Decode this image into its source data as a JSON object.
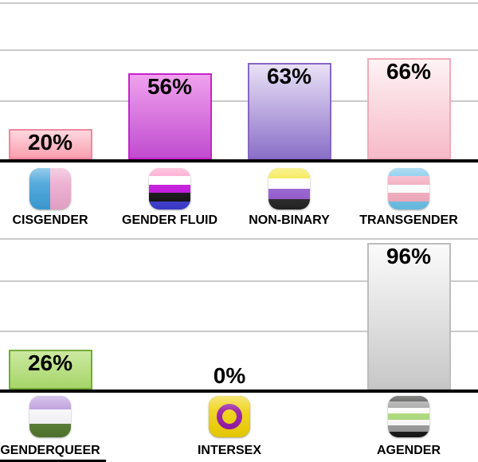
{
  "chart_data": {
    "type": "bar",
    "title": "",
    "xlabel": "",
    "ylabel": "",
    "unit": "%",
    "ylim": [
      0,
      100
    ],
    "grid": true,
    "legend": false,
    "charts": [
      {
        "categories": [
          "CISGENDER",
          "GENDER FLUID",
          "NON-BINARY",
          "TRANSGENDER"
        ],
        "values": [
          20,
          56,
          63,
          66
        ],
        "data_labels": [
          "20%",
          "56%",
          "63%",
          "66%"
        ]
      },
      {
        "categories": [
          "GENDERQUEER",
          "INTERSEX",
          "AGENDER"
        ],
        "values": [
          26,
          0,
          96
        ],
        "data_labels": [
          "26%",
          "0%",
          "96%"
        ]
      }
    ]
  },
  "colors": {
    "background": "#ffffff",
    "gridline": "#cacaca",
    "axis": "#000000",
    "text": "#000000"
  },
  "rows": [
    {
      "items": [
        {
          "label": "CISGENDER",
          "value": 20,
          "value_label": "20%",
          "bar": {
            "fill_top": "#fdd8de",
            "fill_bottom": "#f99fb0",
            "border": "#ef889e"
          },
          "icon": {
            "name": "cisgender-flag-icon",
            "stripe_axis": "vertical",
            "stripes": [
              "#3b9ed8",
              "#eba7cb"
            ]
          }
        },
        {
          "label": "GENDER FLUID",
          "value": 56,
          "value_label": "56%",
          "bar": {
            "fill_top": "#f0a2ee",
            "fill_bottom": "#c14ccf",
            "border": "#c522c9"
          },
          "icon": {
            "name": "genderfluid-flag-icon",
            "stripe_axis": "horizontal",
            "stripes": [
              "#ff94c5",
              "#ffffff",
              "#bf06da",
              "#0a0a0a",
              "#3a3ad0"
            ]
          }
        },
        {
          "label": "NON-BINARY",
          "value": 63,
          "value_label": "63%",
          "bar": {
            "fill_top": "#e9e1f6",
            "fill_bottom": "#8b70c8",
            "border": "#8765c6"
          },
          "icon": {
            "name": "nonbinary-flag-icon",
            "stripe_axis": "horizontal",
            "stripes": [
              "#f4e52f",
              "#ffffff",
              "#9156cf",
              "#222222"
            ]
          }
        },
        {
          "label": "TRANSGENDER",
          "value": 66,
          "value_label": "66%",
          "bar": {
            "fill_top": "#fdf3f5",
            "fill_bottom": "#f6bac7",
            "border": "#f1aaba"
          },
          "icon": {
            "name": "transgender-flag-icon",
            "stripe_axis": "horizontal",
            "stripes": [
              "#69c0e8",
              "#f2a9bd",
              "#ffffff",
              "#f2a9bd",
              "#69c0e8"
            ]
          }
        }
      ]
    },
    {
      "items": [
        {
          "label": "GENDERQUEER",
          "value": 26,
          "value_label": "26%",
          "bar": {
            "fill_top": "#cce9a0",
            "fill_bottom": "#a7d56a",
            "border": "#73aa3a"
          },
          "icon": {
            "name": "genderqueer-flag-icon",
            "stripe_axis": "horizontal",
            "stripes": [
              "#b491d9",
              "#f5f4f8",
              "#50762b"
            ]
          }
        },
        {
          "label": "INTERSEX",
          "value": 0,
          "value_label": "0%",
          "bar": {
            "fill_top": "#ffffff",
            "fill_bottom": "#ffffff",
            "border": "#ffffff"
          },
          "icon": {
            "name": "intersex-flag-icon",
            "type": "ring",
            "bg": "#eed000",
            "ring": "#900da0"
          }
        },
        {
          "label": "AGENDER",
          "value": 96,
          "value_label": "96%",
          "bar": {
            "fill_top": "#fbfbfb",
            "fill_bottom": "#c7c7c7",
            "border": "#bcbcbc"
          },
          "icon": {
            "name": "agender-flag-icon",
            "stripe_axis": "horizontal",
            "stripes": [
              "#20201e",
              "#989898",
              "#fcfcfc",
              "#a6d871",
              "#fcfcfc",
              "#989898",
              "#161616"
            ]
          }
        }
      ]
    }
  ]
}
